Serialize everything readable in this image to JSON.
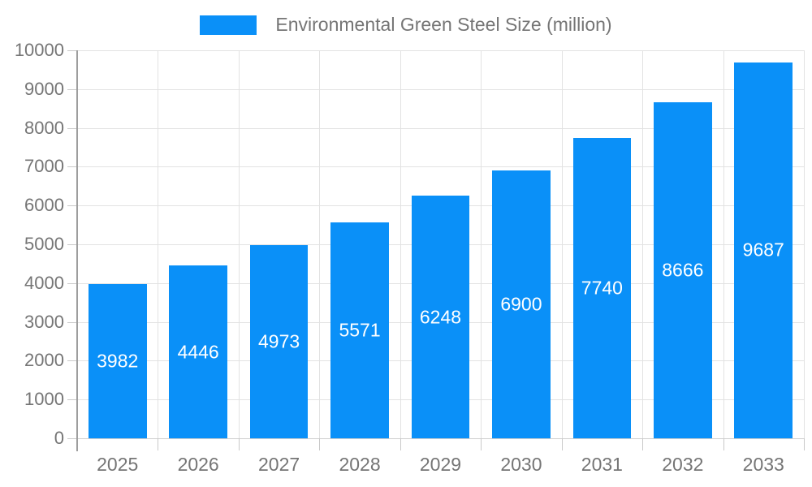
{
  "chart_data": {
    "type": "bar",
    "title": "Environmental Green Steel Size (million)",
    "legend": {
      "label": "Environmental Green Steel Size (million)",
      "position": "top"
    },
    "categories": [
      "2025",
      "2026",
      "2027",
      "2028",
      "2029",
      "2030",
      "2031",
      "2032",
      "2033"
    ],
    "series": [
      {
        "name": "Environmental Green Steel Size (million)",
        "values": [
          3982,
          4446,
          4973,
          5571,
          6248,
          6900,
          7740,
          8666,
          9687
        ]
      }
    ],
    "data_labels": [
      "3982",
      "4446",
      "4973",
      "5571",
      "6248",
      "6900",
      "7740",
      "8666",
      "9687"
    ],
    "xlabel": "",
    "ylabel": "",
    "ylim": [
      0,
      10000
    ],
    "y_ticks": [
      0,
      1000,
      2000,
      3000,
      4000,
      5000,
      6000,
      7000,
      8000,
      9000,
      10000
    ],
    "y_tick_labels": [
      "0",
      "1000",
      "2000",
      "3000",
      "4000",
      "5000",
      "6000",
      "7000",
      "8000",
      "9000",
      "10000"
    ],
    "grid": true,
    "colors": {
      "bar": "#0A90F8",
      "bar_label": "#ffffff",
      "tick_label": "#757575",
      "legend_text": "#757575",
      "gridline": "#e2e2e2",
      "baseline": "#cfcfcf",
      "axis_line": "#9e9e9e",
      "background": "#ffffff"
    }
  }
}
